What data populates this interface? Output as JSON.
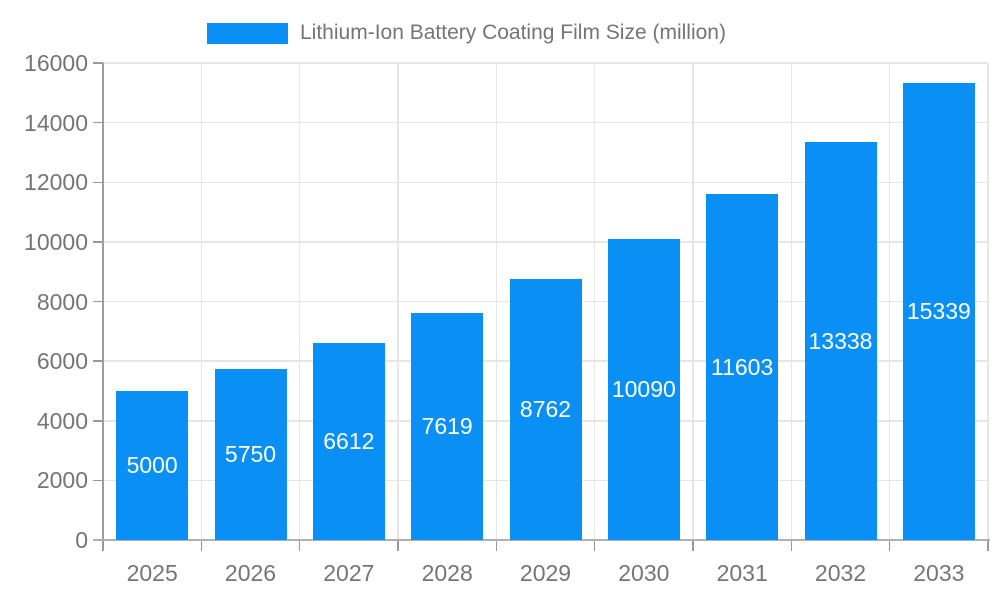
{
  "chart_data": {
    "type": "bar",
    "title": "Lithium-Ion Battery Coating Film Size (million)",
    "categories": [
      "2025",
      "2026",
      "2027",
      "2028",
      "2029",
      "2030",
      "2031",
      "2032",
      "2033"
    ],
    "values": [
      5000,
      5750,
      6612,
      7619,
      8762,
      10090,
      11603,
      13338,
      15339
    ],
    "xlabel": "",
    "ylabel": "",
    "ylim": [
      0,
      16000
    ],
    "ytick_step": 2000,
    "yticks": [
      0,
      2000,
      4000,
      6000,
      8000,
      10000,
      12000,
      14000,
      16000
    ],
    "grid": "horizontal and vertical light gray gridlines",
    "legend_position": "top",
    "value_labels": "white, centered inside each bar",
    "colors": {
      "bar": "#0a90f5",
      "axis_text": "#757575",
      "value_label": "#ffffff",
      "gridline": "#e6e6e6",
      "axis_line": "#9e9e9e",
      "background": "#ffffff"
    }
  },
  "legend": {
    "label": "Lithium-Ion Battery Coating Film Size (million)"
  }
}
